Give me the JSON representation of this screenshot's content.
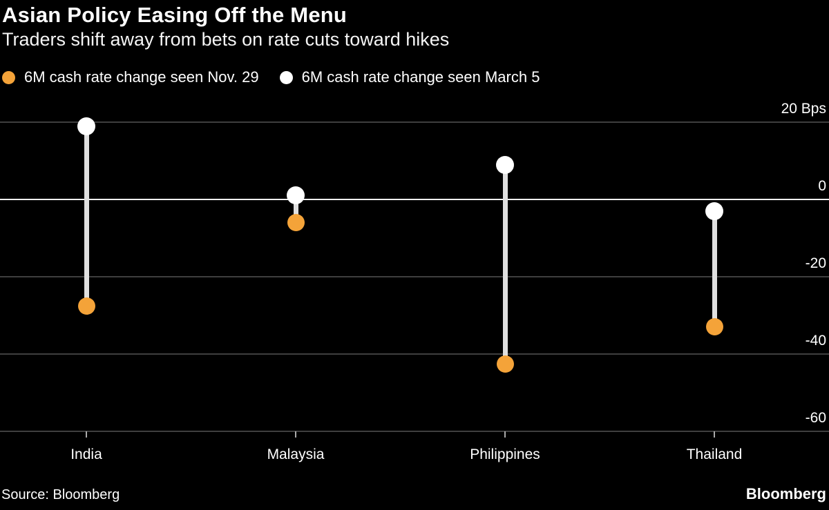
{
  "header": {
    "title": "Asian Policy Easing Off the Menu",
    "subtitle": "Traders shift away from bets on rate cuts toward hikes"
  },
  "legend": {
    "items": [
      {
        "key": "nov29",
        "label": "6M cash rate change seen Nov. 29",
        "color": "#F4A339"
      },
      {
        "key": "march5",
        "label": "6M cash rate change seen March 5",
        "color": "#FFFFFF"
      }
    ]
  },
  "footer": {
    "source": "Source: Bloomberg",
    "brand": "Bloomberg"
  },
  "colors": {
    "background": "#000000",
    "text": "#FFFFFF",
    "orange": "#F4A339",
    "white": "#FFFFFF",
    "stem": "#E0E0E0",
    "gridline": "#3F3F3F",
    "zero_line": "#F0F0F0",
    "axis_tick": "#AAAAAA"
  },
  "chart_data": {
    "type": "dumbbell",
    "title": "Asian Policy Easing Off the Menu",
    "subtitle": "Traders shift away from bets on rate cuts toward hikes",
    "unit": "Bps",
    "categories": [
      "India",
      "Malaysia",
      "Philippines",
      "Thailand"
    ],
    "series": [
      {
        "name": "6M cash rate change seen Nov. 29",
        "key": "nov29",
        "color": "#F4A339",
        "values": [
          -27.5,
          -6,
          -42.5,
          -33
        ]
      },
      {
        "name": "6M cash rate change seen March 5",
        "key": "march5",
        "color": "#FFFFFF",
        "values": [
          19,
          1,
          9,
          -3
        ]
      }
    ],
    "yticks": [
      {
        "value": 20,
        "label": "20 Bps"
      },
      {
        "value": 0,
        "label": "0"
      },
      {
        "value": -20,
        "label": "-20"
      },
      {
        "value": -40,
        "label": "-40"
      },
      {
        "value": -60,
        "label": "-60"
      }
    ],
    "ylim": [
      -62,
      22
    ],
    "baseline_value": 0,
    "grid": true,
    "legend_position": "top",
    "xlabel": "",
    "ylabel": ""
  }
}
